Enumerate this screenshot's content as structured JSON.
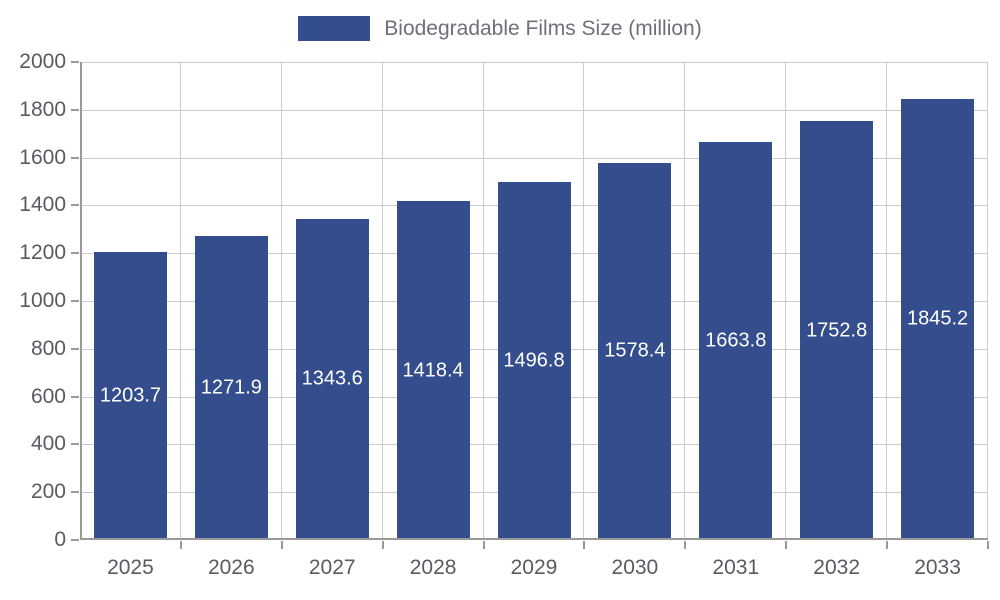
{
  "legend": {
    "label": "Biodegradable Films Size (million)"
  },
  "colors": {
    "bar": "#344d8c",
    "bar_label_text": "#ffffff",
    "grid_line": "#cccccc",
    "axis_line": "#999999",
    "axis_text": "#595b62",
    "legend_text": "#6e7079"
  },
  "chart_data": {
    "type": "bar",
    "title": "Biodegradable Films Size (million)",
    "categories": [
      "2025",
      "2026",
      "2027",
      "2028",
      "2029",
      "2030",
      "2031",
      "2032",
      "2033"
    ],
    "values": [
      1203.7,
      1271.9,
      1343.6,
      1418.4,
      1496.8,
      1578.4,
      1663.8,
      1752.8,
      1845.2
    ],
    "value_labels": [
      "1203.7",
      "1271.9",
      "1343.6",
      "1418.4",
      "1496.8",
      "1578.4",
      "1663.8",
      "1752.8",
      "1845.2"
    ],
    "xlabel": "",
    "ylabel": "",
    "ylim": [
      0,
      2000
    ],
    "ytick_step": 200,
    "ytick_labels": [
      "0",
      "200",
      "400",
      "600",
      "800",
      "1000",
      "1200",
      "1400",
      "1600",
      "1800",
      "2000"
    ],
    "grid": true,
    "legend_position": "top",
    "bar_label_position": "inside-center"
  }
}
